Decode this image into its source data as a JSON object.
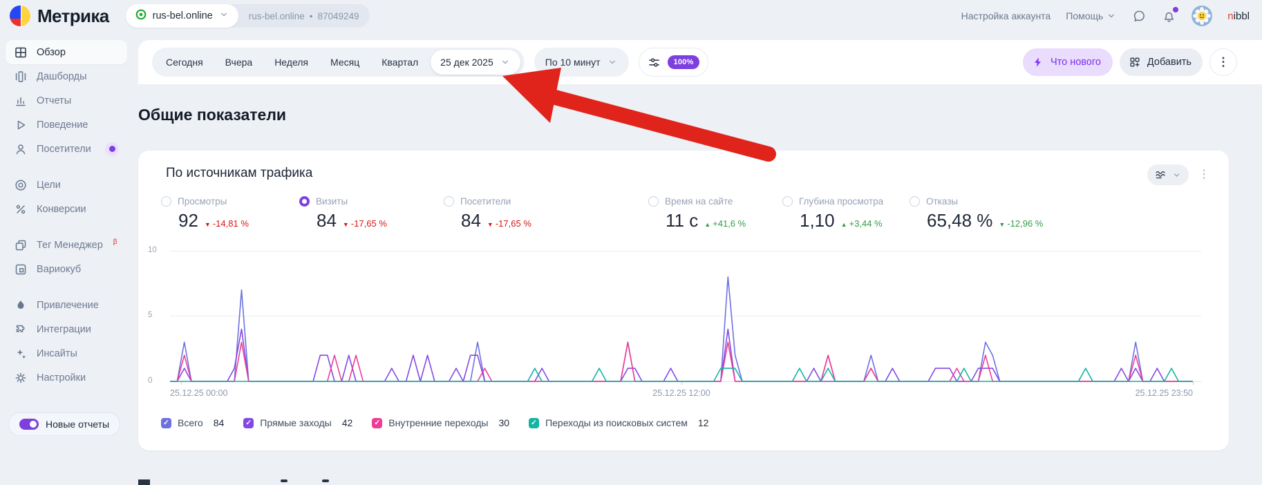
{
  "header": {
    "brand": "Метрика",
    "site_selector": {
      "name": "rus-bel.online"
    },
    "site_meta": {
      "domain": "rus-bel.online",
      "separator": "•",
      "counter_id": "87049249"
    },
    "account_settings_label": "Настройка аккаунта",
    "help_label": "Помощь",
    "username": "nibbl"
  },
  "sidebar": {
    "groups": [
      {
        "items": [
          {
            "label": "Обзор",
            "icon": "overview",
            "active": true
          },
          {
            "label": "Дашборды",
            "icon": "dashboards"
          },
          {
            "label": "Отчеты",
            "icon": "reports"
          },
          {
            "label": "Поведение",
            "icon": "behavior"
          },
          {
            "label": "Посетители",
            "icon": "visitors",
            "badge_dot": true
          }
        ]
      },
      {
        "items": [
          {
            "label": "Цели",
            "icon": "goals"
          },
          {
            "label": "Конверсии",
            "icon": "conversions"
          }
        ]
      },
      {
        "items": [
          {
            "label": "Тег Менеджер",
            "icon": "tag-manager",
            "sup": "β"
          },
          {
            "label": "Вариокуб",
            "icon": "variocube"
          }
        ]
      },
      {
        "items": [
          {
            "label": "Привлечение",
            "icon": "acquisition"
          },
          {
            "label": "Интеграции",
            "icon": "integrations"
          },
          {
            "label": "Инсайты",
            "icon": "insights"
          },
          {
            "label": "Настройки",
            "icon": "settings"
          }
        ]
      }
    ],
    "new_reports": {
      "label": "Новые отчеты",
      "toggle_on": true
    }
  },
  "toolbar": {
    "ranges": [
      "Сегодня",
      "Вчера",
      "Неделя",
      "Месяц",
      "Квартал"
    ],
    "date_picker_value": "25 дек 2025",
    "granularity_value": "По 10 минут",
    "sampling_value": "100%",
    "whats_new_label": "Что нового",
    "add_label": "Добавить"
  },
  "page": {
    "title": "Общие показатели"
  },
  "card": {
    "title": "По источникам трафика",
    "metrics": [
      {
        "label": "Просмотры",
        "value": "92",
        "delta": "-14,81 %",
        "dir": "down",
        "trend": "bad",
        "selected": false
      },
      {
        "label": "Визиты",
        "value": "84",
        "delta": "-17,65 %",
        "dir": "down",
        "trend": "bad",
        "selected": true
      },
      {
        "label": "Посетители",
        "value": "84",
        "delta": "-17,65 %",
        "dir": "down",
        "trend": "bad",
        "selected": false
      },
      {
        "label": "Время на сайте",
        "value": "11 с",
        "delta": "+41,6 %",
        "dir": "up",
        "trend": "good",
        "selected": false
      },
      {
        "label": "Глубина просмотра",
        "value": "1,10",
        "delta": "+3,44 %",
        "dir": "up",
        "trend": "good",
        "selected": false
      },
      {
        "label": "Отказы",
        "value": "65,48 %",
        "delta": "-12,96 %",
        "dir": "down",
        "trend": "good",
        "selected": false
      }
    ]
  },
  "chart_data": {
    "type": "line",
    "title": "По источникам трафика",
    "x_axis": {
      "start": "25.12.25 00:00",
      "middle": "25.12.25 12:00",
      "end": "25.12.25 23:50",
      "points": 144,
      "interval": "10 минут"
    },
    "ylim": [
      0,
      10
    ],
    "yticks": [
      0,
      5,
      10
    ],
    "grid": true,
    "legend_position": "bottom",
    "baseline_value": 0,
    "series": [
      {
        "name": "Всего",
        "total": 84,
        "color": "#6d71e0",
        "spikes": [
          [
            2,
            3
          ],
          [
            10,
            7
          ],
          [
            43,
            3
          ],
          [
            64,
            3
          ],
          [
            78,
            8
          ],
          [
            79,
            2
          ],
          [
            92,
            2
          ],
          [
            98,
            2
          ],
          [
            114,
            3
          ],
          [
            115,
            2
          ],
          [
            135,
            3
          ]
        ]
      },
      {
        "name": "Прямые заходы",
        "total": 42,
        "color": "#8448e3",
        "spikes": [
          [
            2,
            1
          ],
          [
            9,
            1
          ],
          [
            10,
            4
          ],
          [
            21,
            2
          ],
          [
            22,
            2
          ],
          [
            25,
            2
          ],
          [
            31,
            1
          ],
          [
            34,
            2
          ],
          [
            36,
            2
          ],
          [
            40,
            1
          ],
          [
            42,
            2
          ],
          [
            43,
            2
          ],
          [
            52,
            1
          ],
          [
            64,
            1
          ],
          [
            65,
            1
          ],
          [
            70,
            1
          ],
          [
            78,
            4
          ],
          [
            90,
            1
          ],
          [
            98,
            1
          ],
          [
            101,
            1
          ],
          [
            107,
            1
          ],
          [
            108,
            1
          ],
          [
            109,
            1
          ],
          [
            113,
            1
          ],
          [
            114,
            1
          ],
          [
            115,
            1
          ],
          [
            133,
            1
          ],
          [
            135,
            1
          ],
          [
            138,
            1
          ]
        ]
      },
      {
        "name": "Внутренние переходы",
        "total": 30,
        "color": "#ef3d96",
        "spikes": [
          [
            2,
            2
          ],
          [
            10,
            3
          ],
          [
            23,
            2
          ],
          [
            26,
            2
          ],
          [
            44,
            1
          ],
          [
            64,
            3
          ],
          [
            78,
            3
          ],
          [
            92,
            2
          ],
          [
            98,
            1
          ],
          [
            110,
            1
          ],
          [
            114,
            2
          ],
          [
            135,
            2
          ]
        ]
      },
      {
        "name": "Переходы из поисковых систем",
        "total": 12,
        "color": "#12b5a2",
        "spikes": [
          [
            51,
            1
          ],
          [
            60,
            1
          ],
          [
            77,
            1
          ],
          [
            78,
            1
          ],
          [
            79,
            1
          ],
          [
            88,
            1
          ],
          [
            92,
            1
          ],
          [
            111,
            1
          ],
          [
            128,
            1
          ],
          [
            140,
            1
          ]
        ]
      }
    ]
  },
  "colors": {
    "accent_purple": "#7d3fe0",
    "delta_bad": "#dc1414",
    "delta_good": "#2f9e44",
    "annotation_red": "#e0241c"
  }
}
